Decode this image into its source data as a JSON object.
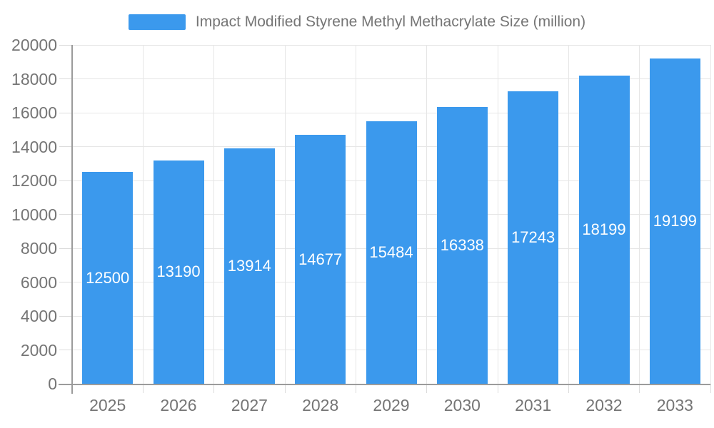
{
  "chart_data": {
    "type": "bar",
    "title": "Impact Modified Styrene Methyl Methacrylate Size (million)",
    "categories": [
      "2025",
      "2026",
      "2027",
      "2028",
      "2029",
      "2030",
      "2031",
      "2032",
      "2033"
    ],
    "series": [
      {
        "name": "Impact Modified Styrene Methyl Methacrylate Size (million)",
        "values": [
          12500,
          13190,
          13914,
          14677,
          15484,
          16338,
          17243,
          18199,
          19199
        ]
      }
    ],
    "xlabel": "",
    "ylabel": "",
    "ylim": [
      0,
      20000
    ],
    "yticks": [
      0,
      2000,
      4000,
      6000,
      8000,
      10000,
      12000,
      14000,
      16000,
      18000,
      20000
    ],
    "grid": true,
    "legend_position": "top",
    "value_labels_inside_bars": true,
    "colors": {
      "bar": "#3b99ed",
      "axis": "#9b9b9b",
      "grid": "#e6e6e6",
      "tick": "#dcdcdc",
      "text": "#757575",
      "value_label": "#ffffff"
    }
  }
}
